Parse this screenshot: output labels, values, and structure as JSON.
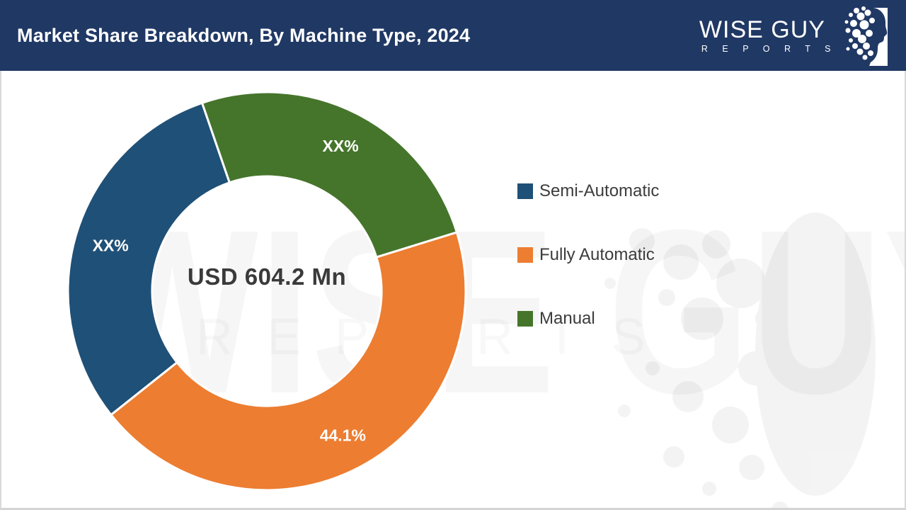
{
  "header": {
    "title": "Market Share Breakdown, By Machine Type, 2024",
    "bg_color": "#203864",
    "logo": {
      "line1": "WISE GUY",
      "line2": "R E P O R T S"
    }
  },
  "chart_data": {
    "type": "pie",
    "subtype": "donut",
    "title": "Market Share Breakdown, By Machine Type, 2024",
    "center_label": "USD 604.2 Mn",
    "start_angle_deg": 341,
    "direction": "counterclockwise",
    "legend_position": "right",
    "slices": [
      {
        "name": "Semi-Automatic",
        "value_pct": 30.4,
        "label": "XX%",
        "color": "#1F5077"
      },
      {
        "name": "Fully Automatic",
        "value_pct": 44.1,
        "label": "44.1%",
        "color": "#ED7D31"
      },
      {
        "name": "Manual",
        "value_pct": 25.5,
        "label": "XX%",
        "color": "#45752B"
      }
    ]
  },
  "watermark": {
    "line1": "WISE GUY",
    "line2": "REPORTS"
  },
  "colors": {
    "header_bg": "#203864",
    "text_dark": "#3a3a3a",
    "border": "#d9d9d9"
  }
}
